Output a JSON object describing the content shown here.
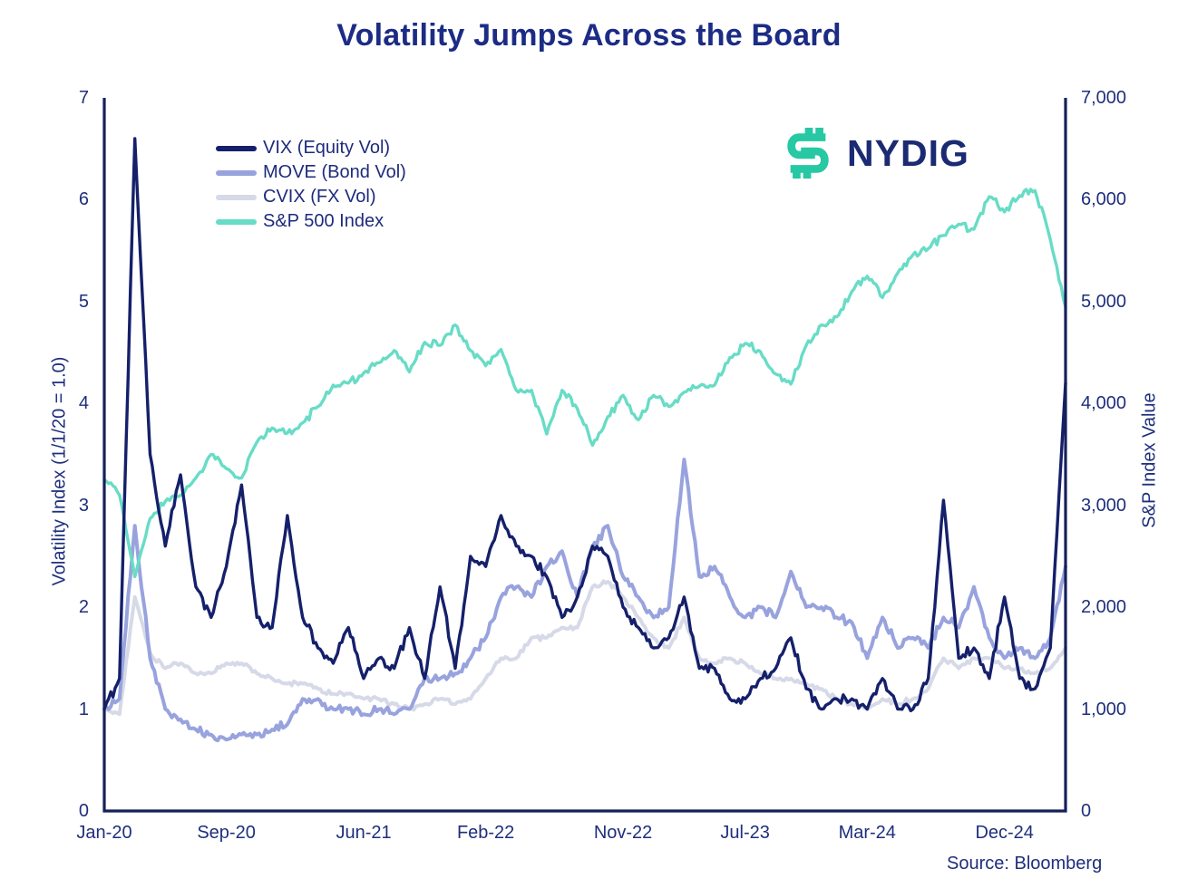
{
  "title": "Volatility Jumps Across the Board",
  "logo": {
    "text": "NYDIG",
    "mark_icon": "dollar-s-mark",
    "mark_color": "#27c8a4",
    "text_color": "#1b2a72"
  },
  "source": "Source: Bloomberg",
  "colors": {
    "navy_text": "#1c2c85",
    "axis_line": "#15205a",
    "vix": "#15206b",
    "move": "#98a3de",
    "cvix": "#d6d9e7",
    "sp500": "#68dcc6"
  },
  "chart_data": {
    "type": "line",
    "title": "Volatility Jumps Across the Board",
    "x_unit": "monthly, Jan-2020 through Apr-2025",
    "left_axis": {
      "label": "Volatility Index (1/1/20 = 1.0)",
      "min": 0,
      "max": 7,
      "ticks": [
        "7",
        "6",
        "5",
        "4",
        "3",
        "2",
        "1",
        "0"
      ]
    },
    "right_axis": {
      "label": "S&P Index Value",
      "min": 0,
      "max": 7000,
      "ticks": [
        "7,000",
        "6,000",
        "5,000",
        "4,000",
        "3,000",
        "2,000",
        "1,000",
        "0"
      ]
    },
    "x_ticks": [
      {
        "label": "Jan-20",
        "m": 0
      },
      {
        "label": "Sep-20",
        "m": 8
      },
      {
        "label": "Jun-21",
        "m": 17
      },
      {
        "label": "Feb-22",
        "m": 25
      },
      {
        "label": "Nov-22",
        "m": 34
      },
      {
        "label": "Jul-23",
        "m": 42
      },
      {
        "label": "Mar-24",
        "m": 50
      },
      {
        "label": "Dec-24",
        "m": 59
      }
    ],
    "legend_position": "top-left-inside",
    "grid": false,
    "series": [
      {
        "name": "VIX (Equity Vol)",
        "color": "#15206b",
        "axis": "left",
        "values": [
          1.0,
          1.3,
          6.6,
          3.5,
          2.6,
          3.3,
          2.2,
          1.9,
          2.4,
          3.2,
          1.9,
          1.8,
          2.9,
          1.9,
          1.6,
          1.45,
          1.8,
          1.3,
          1.5,
          1.4,
          1.8,
          1.3,
          2.2,
          1.4,
          2.5,
          2.4,
          2.9,
          2.6,
          2.5,
          2.3,
          1.9,
          2.1,
          2.6,
          2.5,
          2.0,
          1.8,
          1.6,
          1.7,
          2.1,
          1.4,
          1.4,
          1.1,
          1.1,
          1.3,
          1.4,
          1.7,
          1.2,
          1.0,
          1.1,
          1.1,
          1.0,
          1.3,
          1.0,
          1.0,
          1.3,
          3.05,
          1.5,
          1.6,
          1.3,
          2.1,
          1.3,
          1.2,
          1.6,
          4.2
        ]
      },
      {
        "name": "MOVE (Bond Vol)",
        "color": "#98a3de",
        "axis": "left",
        "values": [
          1.0,
          1.1,
          2.8,
          1.5,
          1.0,
          0.9,
          0.8,
          0.75,
          0.7,
          0.75,
          0.75,
          0.8,
          0.85,
          1.1,
          1.1,
          1.0,
          1.0,
          0.95,
          1.0,
          0.95,
          1.0,
          1.3,
          1.3,
          1.35,
          1.5,
          1.7,
          2.1,
          2.2,
          2.1,
          2.4,
          2.55,
          2.1,
          2.6,
          2.8,
          2.3,
          2.1,
          1.9,
          2.0,
          3.45,
          2.3,
          2.4,
          2.1,
          1.9,
          2.0,
          1.9,
          2.35,
          2.0,
          2.0,
          1.9,
          1.85,
          1.5,
          1.9,
          1.6,
          1.7,
          1.6,
          1.9,
          1.8,
          2.2,
          1.7,
          1.5,
          1.6,
          1.5,
          1.7,
          2.4
        ]
      },
      {
        "name": "CVIX (FX Vol)",
        "color": "#d6d9e7",
        "axis": "left",
        "values": [
          1.0,
          0.95,
          2.1,
          1.55,
          1.4,
          1.45,
          1.35,
          1.35,
          1.45,
          1.45,
          1.35,
          1.3,
          1.25,
          1.25,
          1.2,
          1.15,
          1.15,
          1.1,
          1.1,
          1.05,
          1.0,
          1.05,
          1.1,
          1.05,
          1.1,
          1.3,
          1.5,
          1.5,
          1.7,
          1.7,
          1.8,
          1.8,
          2.2,
          2.25,
          2.1,
          1.9,
          1.7,
          1.6,
          1.9,
          1.5,
          1.45,
          1.5,
          1.45,
          1.35,
          1.3,
          1.3,
          1.25,
          1.2,
          1.1,
          1.05,
          1.0,
          1.1,
          1.05,
          1.1,
          1.2,
          1.5,
          1.4,
          1.5,
          1.5,
          1.4,
          1.4,
          1.35,
          1.4,
          1.6
        ]
      },
      {
        "name": "S&P 500 Index",
        "color": "#68dcc6",
        "axis": "right",
        "values": [
          3250,
          3100,
          2300,
          2870,
          3040,
          3100,
          3270,
          3500,
          3360,
          3270,
          3620,
          3760,
          3710,
          3810,
          3970,
          4180,
          4200,
          4300,
          4400,
          4520,
          4310,
          4600,
          4570,
          4770,
          4520,
          4370,
          4530,
          4130,
          4130,
          3700,
          4130,
          3950,
          3590,
          3870,
          4080,
          3840,
          4080,
          3970,
          4110,
          4170,
          4180,
          4450,
          4590,
          4510,
          4290,
          4190,
          4570,
          4770,
          4850,
          5100,
          5250,
          5040,
          5280,
          5460,
          5520,
          5650,
          5760,
          5710,
          6030,
          5880,
          6040,
          6090,
          5610,
          4950
        ]
      }
    ]
  }
}
